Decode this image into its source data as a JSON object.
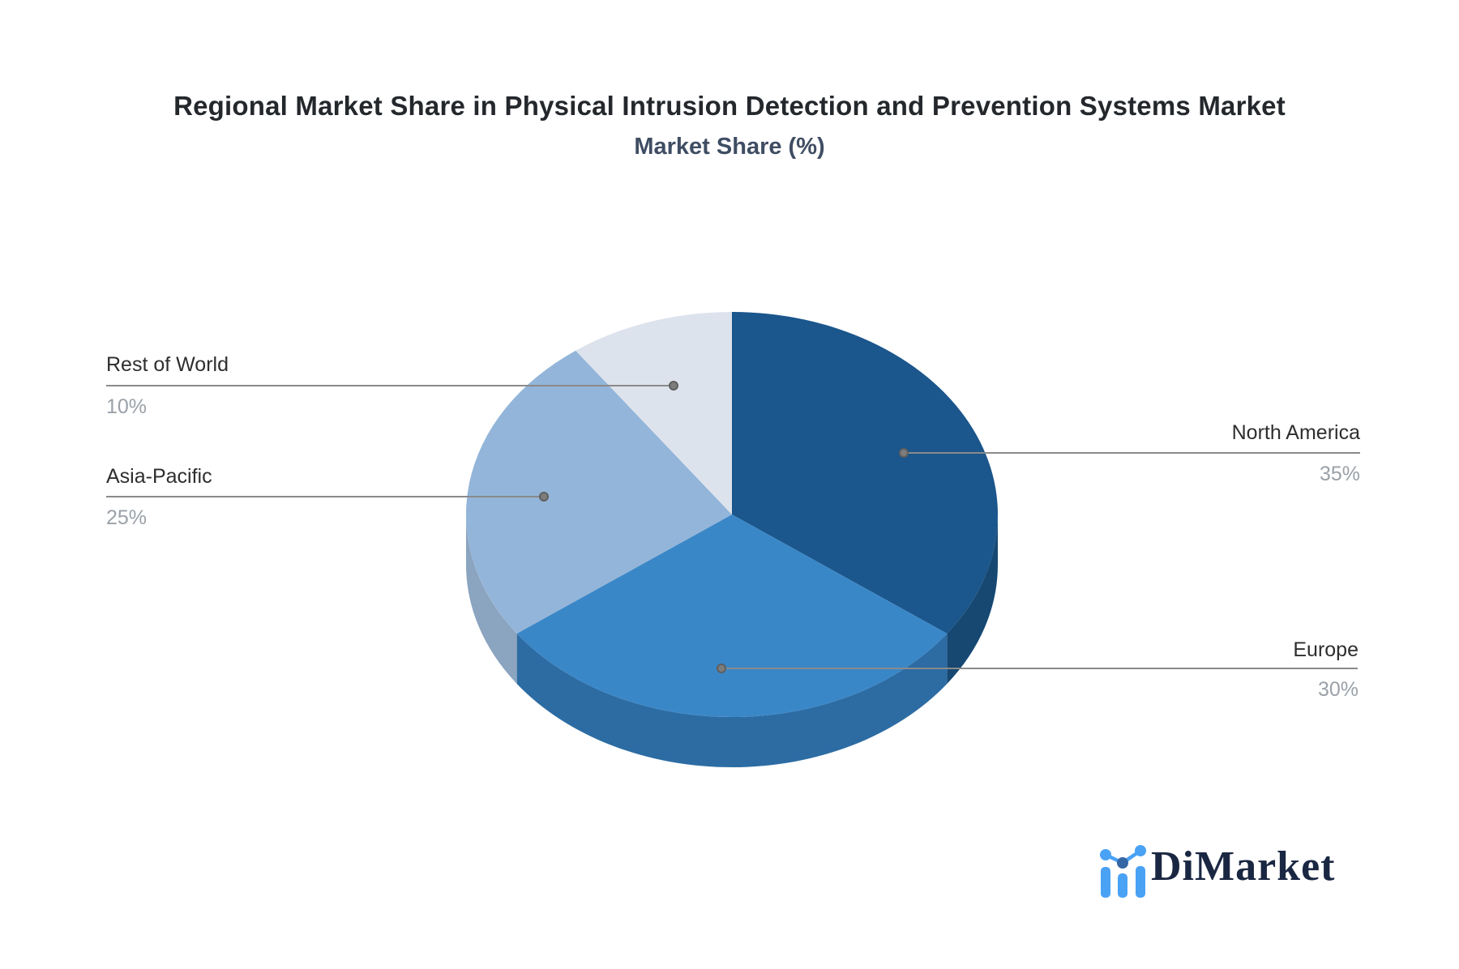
{
  "header": {
    "title": "Regional Market Share in Physical Intrusion Detection and Prevention Systems Market",
    "subtitle": "Market Share (%)"
  },
  "chart_data": {
    "type": "pie",
    "style": "pseudo-3d",
    "title": "Regional Market Share in Physical Intrusion Detection and Prevention Systems Market",
    "subtitle": "Market Share (%)",
    "unit": "%",
    "labels": [
      "North America",
      "Europe",
      "Asia-Pacific",
      "Rest of World"
    ],
    "values": [
      35,
      30,
      25,
      10
    ],
    "display_values": [
      "35%",
      "30%",
      "25%",
      "10%"
    ],
    "colors": [
      "#1b568c",
      "#3a87c8",
      "#93b5d9",
      "#dde3ed"
    ],
    "side_colors": [
      "#164872",
      "#2c6ca3",
      "#8ba4c0",
      "#ccd4e0"
    ],
    "start_angle_deg": 0,
    "direction": "clockwise",
    "legend_position": "callout-labels",
    "leader_line_color": "#8a8a8a",
    "label_color": "#2e2e2e",
    "value_color": "#9aa1a8"
  },
  "callouts": [
    {
      "name": "North America",
      "value": "35%"
    },
    {
      "name": "Europe",
      "value": "30%"
    },
    {
      "name": "Asia-Pacific",
      "value": "25%"
    },
    {
      "name": "Rest of World",
      "value": "10%"
    }
  ],
  "branding": {
    "logo_text": "DiMarket",
    "icon": "bar-line-chart-icon",
    "icon_color": "#4aa2f5",
    "icon_accent_color": "#3567a5",
    "text_color": "#1a2742"
  }
}
